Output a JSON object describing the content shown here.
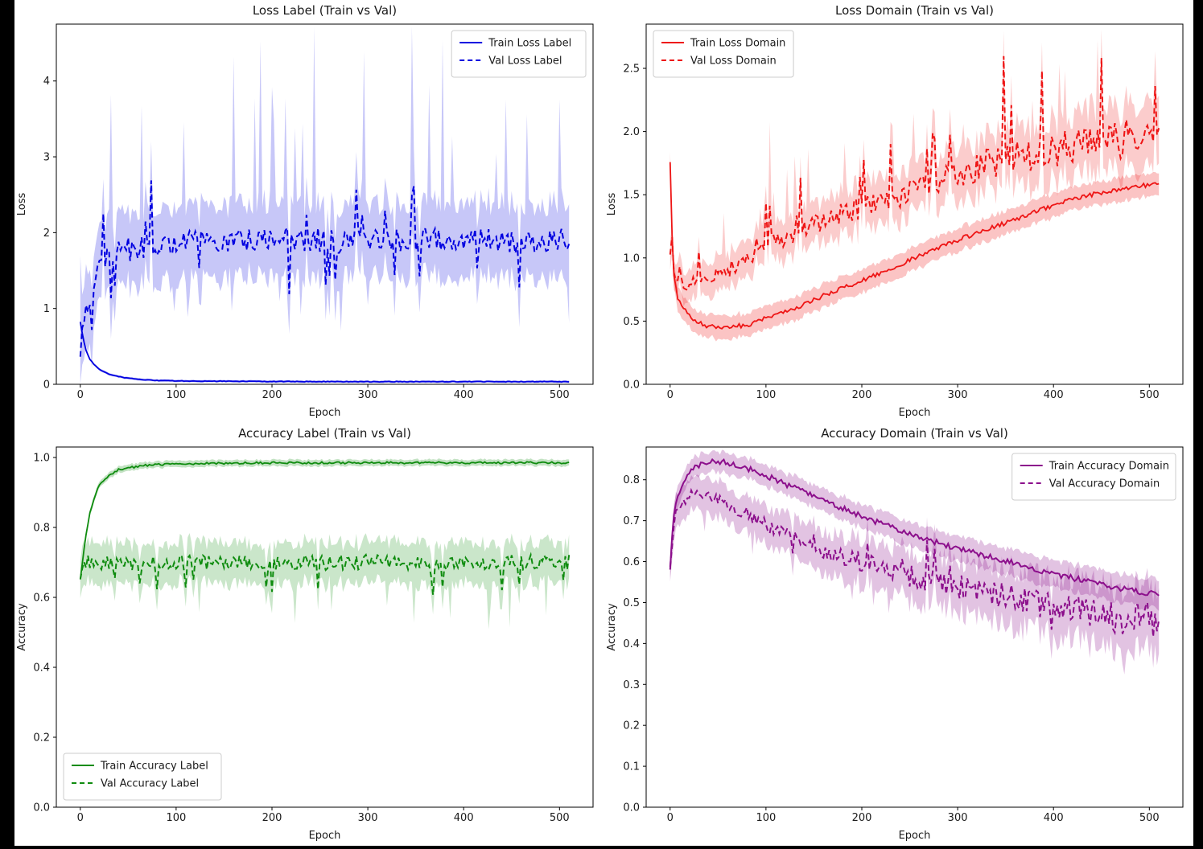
{
  "figure": {
    "background": "#000000",
    "paper": "#ffffff"
  },
  "chart_data": [
    {
      "id": "loss-label",
      "type": "line",
      "title": "Loss Label (Train vs Val)",
      "xlabel": "Epoch",
      "ylabel": "Loss",
      "xlim": [
        -25,
        535
      ],
      "ylim": [
        0,
        4.75
      ],
      "xticks": [
        0,
        100,
        200,
        300,
        400,
        500
      ],
      "yticks": [
        0,
        1,
        2,
        3,
        4
      ],
      "ytick_labels": [
        "0",
        "1",
        "2",
        "3",
        "4"
      ],
      "grid": false,
      "legend": {
        "position": "top-right",
        "entries": [
          {
            "label": "Train Loss Label",
            "dash": false,
            "color": "#0000e0"
          },
          {
            "label": "Val Loss Label",
            "dash": true,
            "color": "#0000e0"
          }
        ]
      },
      "series": [
        {
          "name": "Val Loss Label",
          "color": "#0000e0",
          "dash": true,
          "width": 2,
          "keypoints": [
            [
              0,
              0.5
            ],
            [
              4,
              0.8
            ],
            [
              8,
              1.05
            ],
            [
              12,
              1.25
            ],
            [
              18,
              1.45
            ],
            [
              25,
              1.6
            ],
            [
              35,
              1.7
            ],
            [
              50,
              1.78
            ],
            [
              70,
              1.82
            ],
            [
              100,
              1.88
            ],
            [
              150,
              1.9
            ],
            [
              200,
              1.95
            ],
            [
              250,
              1.9
            ],
            [
              300,
              1.88
            ],
            [
              350,
              1.9
            ],
            [
              400,
              1.92
            ],
            [
              450,
              1.88
            ],
            [
              510,
              1.9
            ]
          ],
          "noise": 0.16,
          "spikes": {
            "prob": 0.07,
            "mag": 0.85,
            "dir": "both"
          },
          "band": 0.42,
          "band_opacity": 0.22,
          "band_spikes": {
            "prob": 0.085,
            "mag": 2.35
          },
          "band_dips": {
            "prob": 0.05,
            "mag": 0.75
          }
        },
        {
          "name": "Train Loss Label",
          "color": "#0000e0",
          "dash": false,
          "width": 1.8,
          "keypoints": [
            [
              0,
              0.82
            ],
            [
              3,
              0.6
            ],
            [
              6,
              0.45
            ],
            [
              10,
              0.33
            ],
            [
              15,
              0.25
            ],
            [
              22,
              0.18
            ],
            [
              30,
              0.13
            ],
            [
              45,
              0.09
            ],
            [
              60,
              0.065
            ],
            [
              80,
              0.05
            ],
            [
              100,
              0.045
            ],
            [
              150,
              0.04
            ],
            [
              250,
              0.035
            ],
            [
              510,
              0.035
            ]
          ],
          "noise": 0.004,
          "band": 0.014,
          "band_opacity": 0.25
        }
      ]
    },
    {
      "id": "loss-domain",
      "type": "line",
      "title": "Loss Domain (Train vs Val)",
      "xlabel": "Epoch",
      "ylabel": "Loss",
      "xlim": [
        -25,
        535
      ],
      "ylim": [
        0,
        2.85
      ],
      "xticks": [
        0,
        100,
        200,
        300,
        400,
        500
      ],
      "yticks": [
        0.0,
        0.5,
        1.0,
        1.5,
        2.0,
        2.5
      ],
      "ytick_labels": [
        "0.0",
        "0.5",
        "1.0",
        "1.5",
        "2.0",
        "2.5"
      ],
      "grid": false,
      "legend": {
        "position": "top-left",
        "entries": [
          {
            "label": "Train Loss Domain",
            "dash": false,
            "color": "#ee1515"
          },
          {
            "label": "Val Loss Domain",
            "dash": true,
            "color": "#ee1515"
          }
        ]
      },
      "series": [
        {
          "name": "Val Loss Domain",
          "color": "#ee1515",
          "dash": true,
          "width": 2,
          "keypoints": [
            [
              0,
              1.0
            ],
            [
              5,
              0.85
            ],
            [
              15,
              0.78
            ],
            [
              25,
              0.8
            ],
            [
              40,
              0.85
            ],
            [
              60,
              0.9
            ],
            [
              80,
              1.0
            ],
            [
              100,
              1.1
            ],
            [
              130,
              1.2
            ],
            [
              160,
              1.3
            ],
            [
              200,
              1.4
            ],
            [
              240,
              1.5
            ],
            [
              280,
              1.62
            ],
            [
              320,
              1.72
            ],
            [
              360,
              1.8
            ],
            [
              400,
              1.85
            ],
            [
              440,
              1.9
            ],
            [
              480,
              1.95
            ],
            [
              510,
              2.0
            ]
          ],
          "noise": 0.09,
          "noise_ramp": [
            0.5,
            1.8
          ],
          "spikes": {
            "prob": 0.07,
            "mag": 0.55,
            "dir": "up"
          },
          "band": 0.16,
          "band_ramp": [
            0.6,
            1.5
          ],
          "band_opacity": 0.22,
          "band_spikes": {
            "prob": 0.06,
            "mag": 0.5
          }
        },
        {
          "name": "Train Loss Domain",
          "color": "#ee1515",
          "dash": false,
          "width": 1.8,
          "keypoints": [
            [
              0,
              1.75
            ],
            [
              2,
              1.2
            ],
            [
              4,
              0.85
            ],
            [
              8,
              0.68
            ],
            [
              15,
              0.6
            ],
            [
              25,
              0.5
            ],
            [
              40,
              0.46
            ],
            [
              60,
              0.45
            ],
            [
              80,
              0.47
            ],
            [
              100,
              0.52
            ],
            [
              130,
              0.6
            ],
            [
              160,
              0.7
            ],
            [
              200,
              0.82
            ],
            [
              240,
              0.95
            ],
            [
              280,
              1.08
            ],
            [
              320,
              1.2
            ],
            [
              360,
              1.3
            ],
            [
              400,
              1.42
            ],
            [
              440,
              1.5
            ],
            [
              480,
              1.55
            ],
            [
              510,
              1.6
            ]
          ],
          "noise": 0.018,
          "band": 0.08,
          "band_opacity": 0.25
        }
      ]
    },
    {
      "id": "accuracy-label",
      "type": "line",
      "title": "Accuracy Label (Train vs Val)",
      "xlabel": "Epoch",
      "ylabel": "Accuracy",
      "xlim": [
        -25,
        535
      ],
      "ylim": [
        0,
        1.03
      ],
      "xticks": [
        0,
        100,
        200,
        300,
        400,
        500
      ],
      "yticks": [
        0.0,
        0.2,
        0.4,
        0.6,
        0.8,
        1.0
      ],
      "ytick_labels": [
        "0.0",
        "0.2",
        "0.4",
        "0.6",
        "0.8",
        "1.0"
      ],
      "grid": false,
      "legend": {
        "position": "bottom-left",
        "entries": [
          {
            "label": "Train Accuracy Label",
            "dash": false,
            "color": "#0f8c0f"
          },
          {
            "label": "Val Accuracy Label",
            "dash": true,
            "color": "#0f8c0f"
          }
        ]
      },
      "series": [
        {
          "name": "Val Accuracy Label",
          "color": "#0f8c0f",
          "dash": true,
          "width": 2,
          "keypoints": [
            [
              0,
              0.66
            ],
            [
              3,
              0.69
            ],
            [
              8,
              0.7
            ],
            [
              20,
              0.7
            ],
            [
              100,
              0.7
            ],
            [
              200,
              0.7
            ],
            [
              300,
              0.7
            ],
            [
              400,
              0.7
            ],
            [
              510,
              0.7
            ]
          ],
          "noise": 0.022,
          "spikes": {
            "prob": 0.06,
            "mag": 0.1,
            "dir": "down"
          },
          "band": 0.05,
          "band_opacity": 0.22,
          "band_dips": {
            "prob": 0.06,
            "mag": 0.12
          }
        },
        {
          "name": "Train Accuracy Label",
          "color": "#0f8c0f",
          "dash": false,
          "width": 1.8,
          "keypoints": [
            [
              0,
              0.65
            ],
            [
              3,
              0.72
            ],
            [
              6,
              0.78
            ],
            [
              10,
              0.84
            ],
            [
              15,
              0.89
            ],
            [
              20,
              0.92
            ],
            [
              30,
              0.95
            ],
            [
              40,
              0.965
            ],
            [
              60,
              0.975
            ],
            [
              80,
              0.98
            ],
            [
              120,
              0.983
            ],
            [
              200,
              0.985
            ],
            [
              300,
              0.985
            ],
            [
              400,
              0.985
            ],
            [
              510,
              0.985
            ]
          ],
          "noise": 0.003,
          "band": 0.008,
          "band_opacity": 0.25
        }
      ]
    },
    {
      "id": "accuracy-domain",
      "type": "line",
      "title": "Accuracy Domain (Train vs Val)",
      "xlabel": "Epoch",
      "ylabel": "Accuracy",
      "xlim": [
        -25,
        535
      ],
      "ylim": [
        0,
        0.88
      ],
      "xticks": [
        0,
        100,
        200,
        300,
        400,
        500
      ],
      "yticks": [
        0.0,
        0.1,
        0.2,
        0.3,
        0.4,
        0.5,
        0.6,
        0.7,
        0.8
      ],
      "ytick_labels": [
        "0.0",
        "0.1",
        "0.2",
        "0.3",
        "0.4",
        "0.5",
        "0.6",
        "0.7",
        "0.8"
      ],
      "grid": false,
      "legend": {
        "position": "top-right",
        "entries": [
          {
            "label": "Train Accuracy Domain",
            "dash": false,
            "color": "#8c0f8c"
          },
          {
            "label": "Val Accuracy Domain",
            "dash": true,
            "color": "#8c0f8c"
          }
        ]
      },
      "series": [
        {
          "name": "Val Accuracy Domain",
          "color": "#8c0f8c",
          "dash": true,
          "width": 2,
          "keypoints": [
            [
              0,
              0.58
            ],
            [
              3,
              0.68
            ],
            [
              8,
              0.72
            ],
            [
              15,
              0.75
            ],
            [
              25,
              0.77
            ],
            [
              40,
              0.76
            ],
            [
              60,
              0.74
            ],
            [
              80,
              0.71
            ],
            [
              100,
              0.69
            ],
            [
              130,
              0.66
            ],
            [
              160,
              0.63
            ],
            [
              200,
              0.6
            ],
            [
              240,
              0.57
            ],
            [
              280,
              0.55
            ],
            [
              320,
              0.53
            ],
            [
              360,
              0.51
            ],
            [
              400,
              0.49
            ],
            [
              440,
              0.47
            ],
            [
              480,
              0.46
            ],
            [
              510,
              0.46
            ]
          ],
          "noise": 0.02,
          "noise_ramp": [
            0.5,
            2.2
          ],
          "spikes": {
            "prob": 0.05,
            "mag": 0.07,
            "dir": "both"
          },
          "band": 0.045,
          "band_ramp": [
            0.7,
            1.6
          ],
          "band_opacity": 0.25,
          "band_dips": {
            "prob": 0.05,
            "mag": 0.06
          }
        },
        {
          "name": "Train Accuracy Domain",
          "color": "#8c0f8c",
          "dash": false,
          "width": 2,
          "keypoints": [
            [
              0,
              0.58
            ],
            [
              3,
              0.7
            ],
            [
              8,
              0.76
            ],
            [
              15,
              0.8
            ],
            [
              25,
              0.83
            ],
            [
              40,
              0.845
            ],
            [
              55,
              0.845
            ],
            [
              70,
              0.835
            ],
            [
              90,
              0.82
            ],
            [
              110,
              0.8
            ],
            [
              140,
              0.77
            ],
            [
              170,
              0.74
            ],
            [
              200,
              0.71
            ],
            [
              240,
              0.675
            ],
            [
              280,
              0.645
            ],
            [
              320,
              0.62
            ],
            [
              360,
              0.595
            ],
            [
              400,
              0.57
            ],
            [
              440,
              0.55
            ],
            [
              480,
              0.53
            ],
            [
              510,
              0.52
            ]
          ],
          "noise": 0.007,
          "band": 0.025,
          "band_ramp": [
            0.8,
            1.3
          ],
          "band_opacity": 0.25
        }
      ]
    }
  ]
}
